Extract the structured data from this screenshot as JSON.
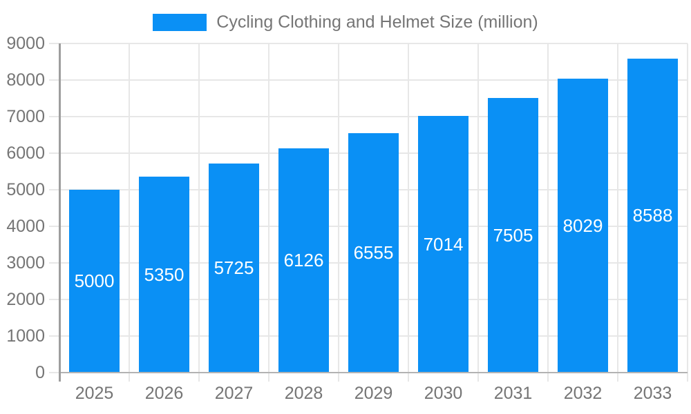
{
  "chart_data": {
    "type": "bar",
    "title": "Cycling Clothing and Helmet Size (million)",
    "legend_position": "top-center",
    "categories": [
      "2025",
      "2026",
      "2027",
      "2028",
      "2029",
      "2030",
      "2031",
      "2032",
      "2033"
    ],
    "values": [
      5000,
      5350,
      5725,
      6126,
      6555,
      7014,
      7505,
      8029,
      8588
    ],
    "series_name": "Cycling Clothing and Helmet Size (million)",
    "xlabel": "",
    "ylabel": "",
    "ylim": [
      0,
      9000
    ],
    "y_ticks": [
      0,
      1000,
      2000,
      3000,
      4000,
      5000,
      6000,
      7000,
      8000,
      9000
    ],
    "grid": "horizontal and vertical gridlines on",
    "value_labels": "inside bars, centered, white",
    "colors": {
      "bar": "#0a90f5",
      "gridline": "#e7e7e7",
      "axis_line": "#9e9e9e",
      "baseline": "#b3b3b3",
      "tick_text": "#757575",
      "value_text": "#ffffff",
      "background": "#ffffff"
    }
  }
}
